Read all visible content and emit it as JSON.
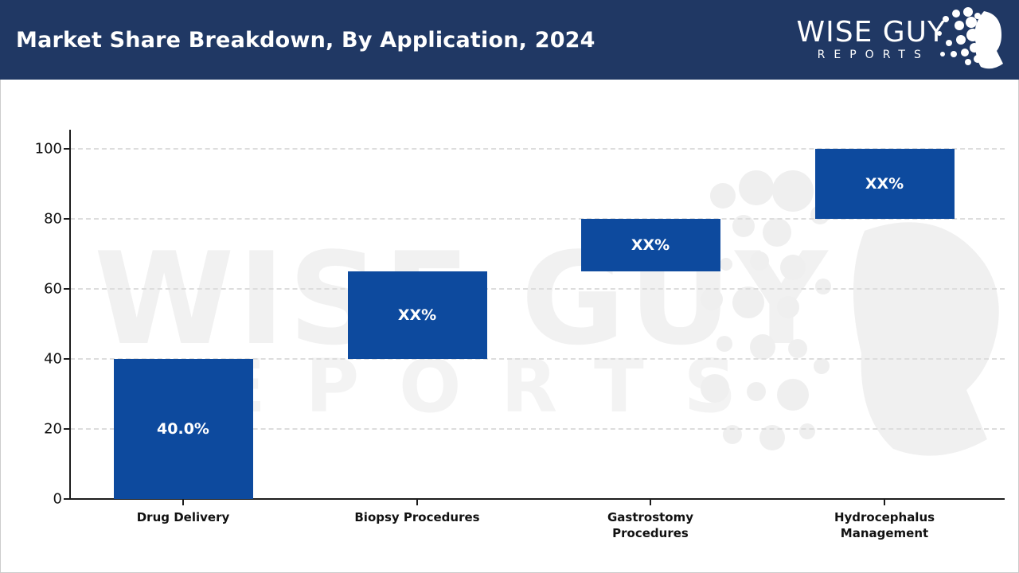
{
  "header": {
    "title": "Market Share Breakdown, By Application, 2024",
    "logo": {
      "line1": "WISE GUY",
      "line2": "REPORTS"
    }
  },
  "watermark": {
    "line1": "WISE GUY",
    "line2": "REPORTS"
  },
  "chart_data": {
    "type": "bar",
    "subtype": "waterfall",
    "title": "Market Share Breakdown, By Application, 2024",
    "categories": [
      "Drug Delivery",
      "Biopsy Procedures",
      "Gastrostomy\nProcedures",
      "Hydrocephalus\nManagement"
    ],
    "segments": [
      {
        "category": "Drug Delivery",
        "start": 0,
        "end": 40,
        "label": "40.0%"
      },
      {
        "category": "Biopsy Procedures",
        "start": 40,
        "end": 65,
        "label": "XX%"
      },
      {
        "category": "Gastrostomy\nProcedures",
        "start": 65,
        "end": 80,
        "label": "XX%"
      },
      {
        "category": "Hydrocephalus\nManagement",
        "start": 80,
        "end": 100,
        "label": "XX%"
      }
    ],
    "y_ticks": [
      0,
      20,
      40,
      60,
      80,
      100
    ],
    "ylim": [
      0,
      105
    ],
    "xlabel": "",
    "ylabel": "",
    "grid": "dashed-horizontal",
    "legend": "none",
    "bar_color": "#0d4a9e",
    "bar_label_color": "#ffffff"
  },
  "colors": {
    "header_bg": "#203864",
    "bar": "#0d4a9e",
    "grid": "#dddddd",
    "axis": "#1c1c1c",
    "watermark": "#f1f1f1"
  }
}
